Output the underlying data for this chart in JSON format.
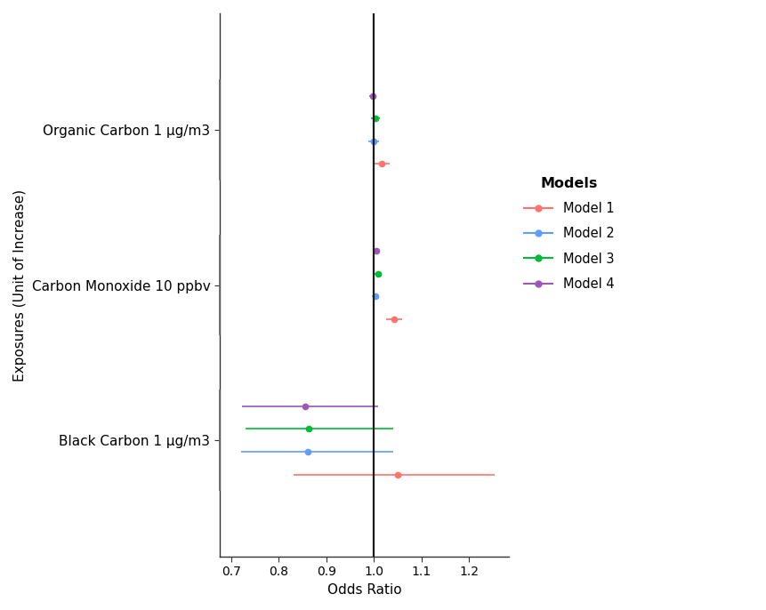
{
  "exposures_ordered": [
    "Black Carbon 1 μg/m3",
    "Carbon Monoxide 10 ppbv",
    "Organic Carbon 1 μg/m3"
  ],
  "models": [
    "Model 1",
    "Model 2",
    "Model 3",
    "Model 4"
  ],
  "colors": {
    "Model 1": "#F8766D",
    "Model 2": "#619CFF",
    "Model 3": "#00BA38",
    "Model 4": "#9B59B6"
  },
  "data": {
    "Organic Carbon 1 μg/m3": {
      "Model 1": {
        "est": 1.016,
        "lo": 0.999,
        "hi": 1.033
      },
      "Model 2": {
        "est": 0.999,
        "lo": 0.988,
        "hi": 1.01
      },
      "Model 3": {
        "est": 1.003,
        "lo": 0.993,
        "hi": 1.013
      },
      "Model 4": {
        "est": 0.997,
        "lo": 0.99,
        "hi": 1.004
      }
    },
    "Carbon Monoxide 10 ppbv": {
      "Model 1": {
        "est": 1.042,
        "lo": 1.025,
        "hi": 1.059
      },
      "Model 2": {
        "est": 1.003,
        "lo": 0.995,
        "hi": 1.011
      },
      "Model 3": {
        "est": 1.008,
        "lo": 1.0,
        "hi": 1.016
      },
      "Model 4": {
        "est": 1.006,
        "lo": 0.999,
        "hi": 1.013
      }
    },
    "Black Carbon 1 μg/m3": {
      "Model 1": {
        "est": 1.05,
        "lo": 0.83,
        "hi": 1.255
      },
      "Model 2": {
        "est": 0.86,
        "lo": 0.72,
        "hi": 1.04
      },
      "Model 3": {
        "est": 0.862,
        "lo": 0.73,
        "hi": 1.04
      },
      "Model 4": {
        "est": 0.855,
        "lo": 0.723,
        "hi": 1.008
      }
    }
  },
  "xlabel": "Odds Ratio",
  "ylabel": "Exposures (Unit of Increase)",
  "xlim": [
    0.675,
    1.285
  ],
  "xticks": [
    0.7,
    0.8,
    0.9,
    1.0,
    1.1,
    1.2
  ],
  "vline_x": 1.0,
  "background_color": "#ffffff",
  "axis_fontsize": 11,
  "tick_fontsize": 10,
  "legend_title": "Models",
  "offsets": {
    "Model 4": 0.22,
    "Model 3": 0.074,
    "Model 2": -0.074,
    "Model 1": -0.22
  },
  "y_positions": {
    "Black Carbon 1 μg/m3": 1,
    "Carbon Monoxide 10 ppbv": 2,
    "Organic Carbon 1 μg/m3": 3
  }
}
